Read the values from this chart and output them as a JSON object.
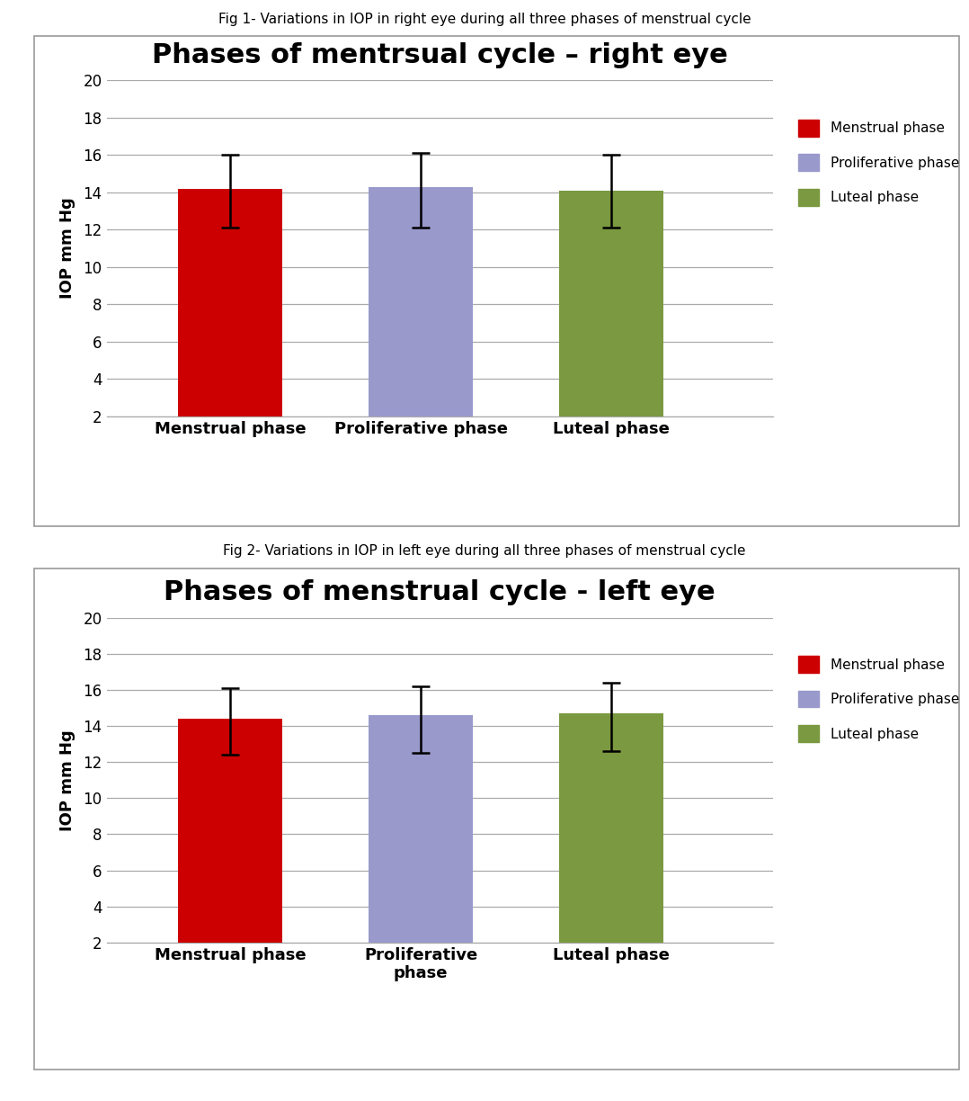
{
  "fig1": {
    "title": "Phases of mentrsual cycle – right eye",
    "fig_caption": "Fig 1- Variations in IOP in right eye during all three phases of menstrual cycle",
    "categories": [
      "Menstrual phase",
      "Proliferative phase",
      "Luteal phase"
    ],
    "values": [
      14.2,
      14.3,
      14.1
    ],
    "errors_upper": [
      1.8,
      1.8,
      1.9
    ],
    "errors_lower": [
      2.1,
      2.2,
      2.0
    ],
    "bar_colors": [
      "#cc0000",
      "#9999cc",
      "#7a9940"
    ],
    "ylabel": "IOP mm Hg",
    "ylim_min": 2,
    "ylim_max": 20,
    "yticks": [
      2,
      4,
      6,
      8,
      10,
      12,
      14,
      16,
      18,
      20
    ],
    "legend_labels": [
      "Menstrual phase",
      "Proliferative phase",
      "Luteal phase"
    ],
    "xlabel_labels": [
      "Menstrual phase",
      "Proliferative phase",
      "Luteal phase"
    ]
  },
  "fig2": {
    "title": "Phases of menstrual cycle - left eye",
    "fig_caption": "Fig 2- Variations in IOP in left eye during all three phases of menstrual cycle",
    "categories": [
      "Menstrual phase",
      "Proliferative\nphase",
      "Luteal phase"
    ],
    "values": [
      14.4,
      14.6,
      14.7
    ],
    "errors_upper": [
      1.7,
      1.6,
      1.7
    ],
    "errors_lower": [
      2.0,
      2.1,
      2.1
    ],
    "bar_colors": [
      "#cc0000",
      "#9999cc",
      "#7a9940"
    ],
    "ylabel": "IOP mm Hg",
    "ylim_min": 2,
    "ylim_max": 20,
    "yticks": [
      2,
      4,
      6,
      8,
      10,
      12,
      14,
      16,
      18,
      20
    ],
    "legend_labels": [
      "Menstrual phase",
      "Proliferative phase",
      "Luteal phase"
    ]
  },
  "background_color": "#ffffff",
  "panel_bg": "#ffffff",
  "grid_color": "#aaaaaa",
  "border_color": "#999999",
  "bar_edge_color": "none",
  "error_color": "#000000",
  "caption_fontsize": 11,
  "title_fontsize": 22,
  "ylabel_fontsize": 13,
  "tick_fontsize": 12,
  "xlabel_fontsize": 13,
  "legend_fontsize": 11
}
